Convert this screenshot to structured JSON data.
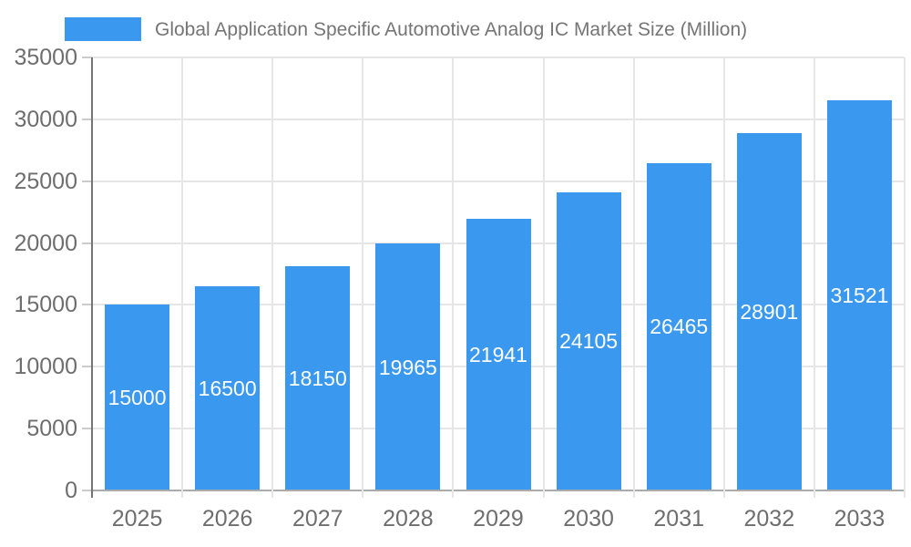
{
  "chart_data": {
    "type": "bar",
    "title": "Global Application Specific Automotive Analog IC Market Size (Million)",
    "categories": [
      "2025",
      "2026",
      "2027",
      "2028",
      "2029",
      "2030",
      "2031",
      "2032",
      "2033"
    ],
    "values": [
      15000,
      16500,
      18150,
      19965,
      21941,
      24105,
      26465,
      28901,
      31521
    ],
    "bar_value_labels": [
      "15000",
      "16500",
      "18150",
      "19965",
      "21941",
      "24105",
      "26465",
      "28901",
      "31521"
    ],
    "xlabel": "",
    "ylabel": "",
    "ylim": [
      0,
      35000
    ],
    "yticks": [
      0,
      5000,
      10000,
      15000,
      20000,
      25000,
      30000,
      35000
    ],
    "ytick_labels": [
      "0",
      "5000",
      "10000",
      "15000",
      "20000",
      "25000",
      "30000",
      "35000"
    ],
    "grid": true,
    "legend_position": "top",
    "bar_label_position": "inside-center"
  },
  "colors": {
    "bar": "#3A99EE",
    "bar_label": "#FFFFFF",
    "gridline": "#E6E6E6",
    "baseline": "#ABABAB",
    "axis_line": "#757575",
    "tick": "#CCCCCC",
    "axis_text": "#6E6E6E",
    "title_text": "#757575",
    "background": "#FFFFFF"
  }
}
